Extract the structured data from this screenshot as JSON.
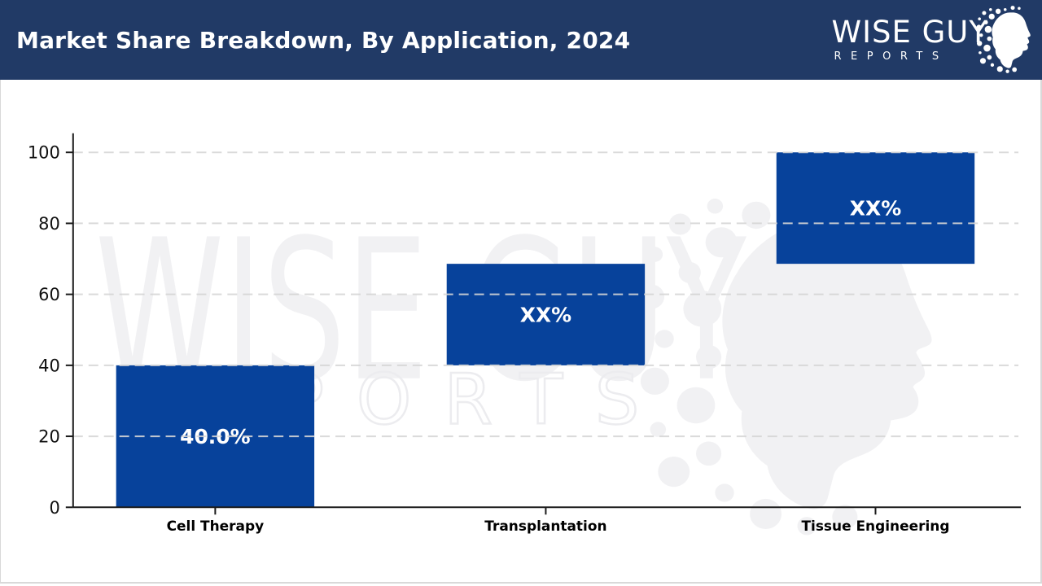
{
  "header": {
    "title": "Market Share Breakdown, By Application, 2024",
    "logo": {
      "wordmark": "WISE GUY",
      "subtext": "REPORTS"
    }
  },
  "watermark": {
    "wordmark": "WISE GUY",
    "subtext": "REPORTS"
  },
  "colors": {
    "header_bg": "#213a66",
    "bar": "#07429b",
    "bar_label": "#ffffff",
    "axis": "#1a1a1a",
    "grid": "#d6d6d6",
    "tick_label": "#111111",
    "category_label": "#000000",
    "watermark": "#f1f1f3",
    "card_border": "#d9d9d9",
    "logo_text": "#ffffff"
  },
  "chart_data": {
    "type": "bar",
    "variant": "floating-segment-waterfall",
    "title": "Market Share Breakdown, By Application, 2024",
    "categories": [
      "Cell Therapy",
      "Transplantation",
      "Tissue Engineering"
    ],
    "segments": [
      {
        "category": "Cell Therapy",
        "from": 0,
        "to": 40,
        "size": 40.0,
        "label": "40.0%"
      },
      {
        "category": "Transplantation",
        "from": 40,
        "to": 68.6,
        "size": 28.6,
        "label": "XX%"
      },
      {
        "category": "Tissue Engineering",
        "from": 68.6,
        "to": 100,
        "size": 31.4,
        "label": "XX%"
      }
    ],
    "xlabel": "",
    "ylabel": "",
    "ylim": [
      0,
      100
    ],
    "y_ticks": [
      0,
      20,
      40,
      60,
      80,
      100
    ],
    "grid": "horizontal-dashed-over-bars",
    "legend": "none"
  }
}
